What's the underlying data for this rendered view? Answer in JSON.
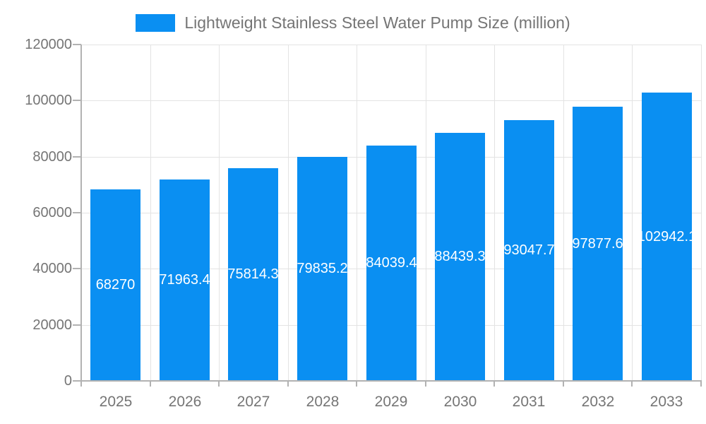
{
  "chart_data": {
    "type": "bar",
    "title": "Lightweight Stainless Steel Water Pump Size (million)",
    "legend": [
      "Lightweight Stainless Steel Water Pump Size (million)"
    ],
    "legend_position": "top",
    "categories": [
      "2025",
      "2026",
      "2027",
      "2028",
      "2029",
      "2030",
      "2031",
      "2032",
      "2033"
    ],
    "series": [
      {
        "name": "Lightweight Stainless Steel Water Pump Size (million)",
        "values": [
          68270,
          71963.4,
          75814.3,
          79835.2,
          84039.4,
          88439.3,
          93047.7,
          97877.6,
          102942.1
        ]
      }
    ],
    "bar_labels": [
      "68270",
      "71963.4",
      "75814.3",
      "79835.2",
      "84039.4",
      "88439.3",
      "93047.7",
      "97877.6",
      "102942.1"
    ],
    "xlabel": "",
    "ylabel": "",
    "ylim": [
      0,
      120000
    ],
    "yticks": [
      0,
      20000,
      40000,
      60000,
      80000,
      100000,
      120000
    ],
    "grid": true
  },
  "colors": {
    "bar": "#0a8ff2",
    "bar_label": "#ffffff",
    "axis_text": "#757575",
    "axis_line": "#b2b2b2",
    "gridline": "#e3e3e3",
    "background": "#ffffff"
  }
}
